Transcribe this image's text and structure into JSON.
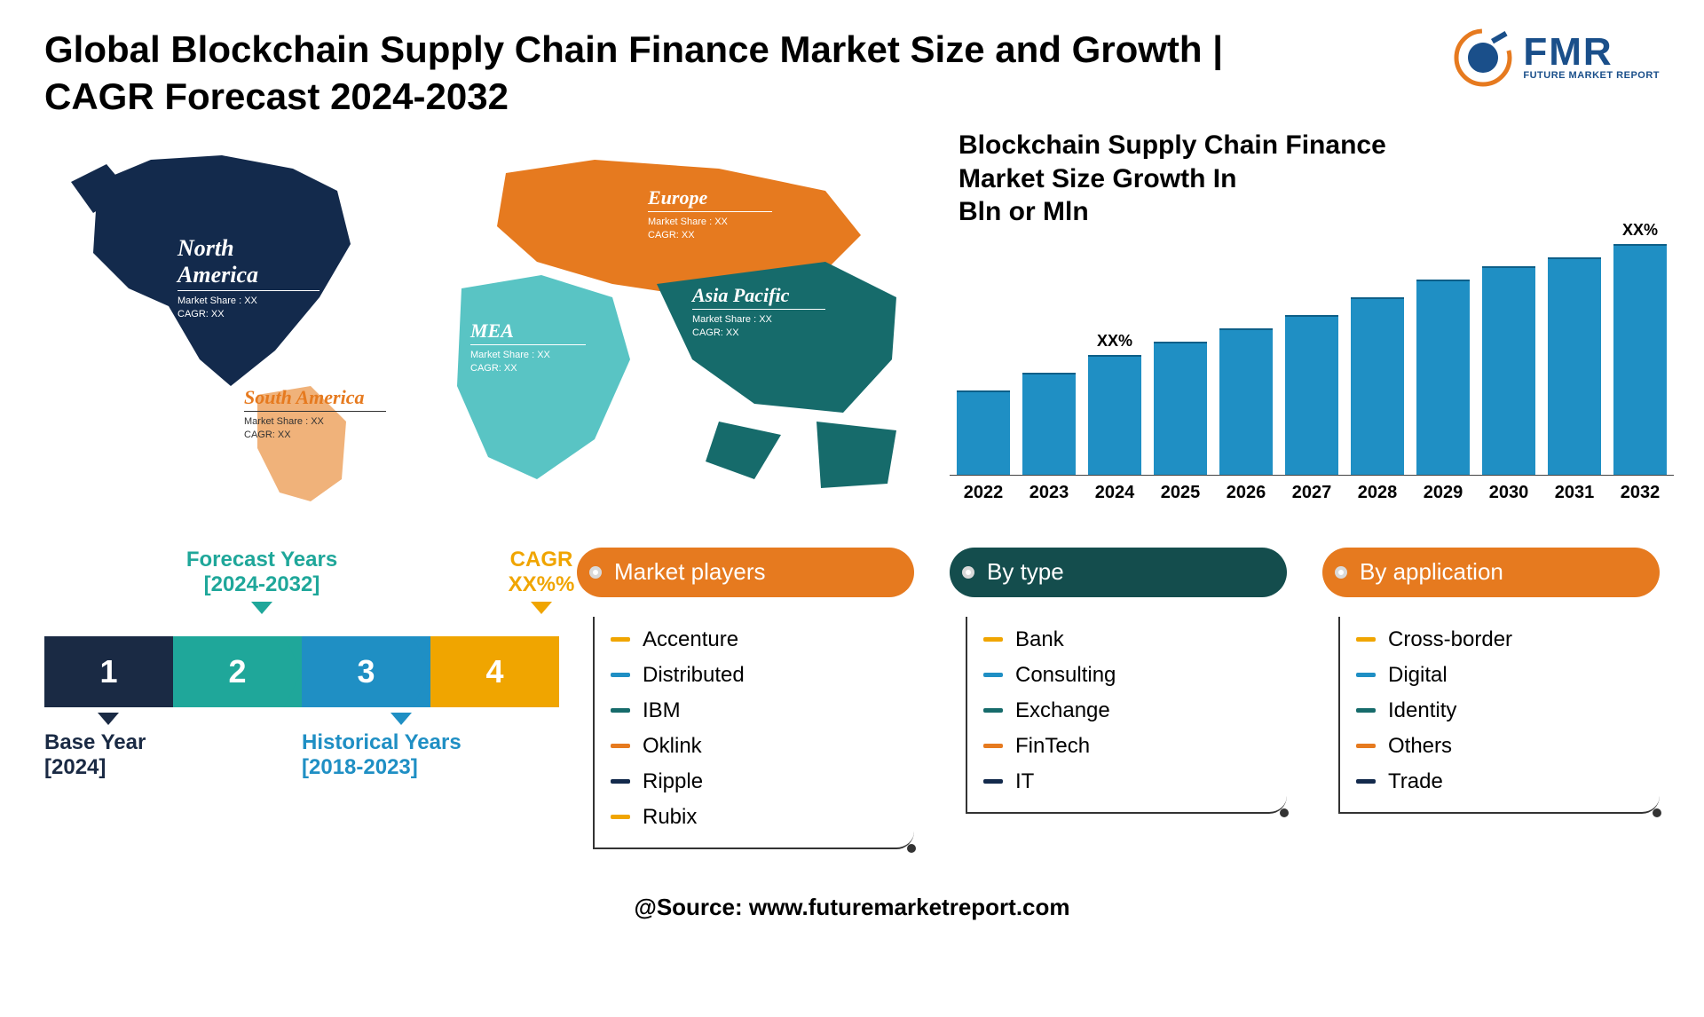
{
  "title": "Global Blockchain Supply Chain Finance  Market Size and Growth | CAGR Forecast 2024-2032",
  "logo": {
    "fmr": "FMR",
    "sub": "FUTURE MARKET REPORT",
    "color_orange": "#e67a1f",
    "color_blue": "#1a4f8a"
  },
  "source": "@Source: www.futuremarketreport.com",
  "map": {
    "regions": [
      {
        "key": "na",
        "name": "North America",
        "share": "Market Share : XX",
        "cagr": "CAGR: XX",
        "color": "#132a4c",
        "text": "light"
      },
      {
        "key": "sa",
        "name": "South America",
        "share": "Market Share : XX",
        "cagr": "CAGR: XX",
        "color": "#f0b27a",
        "text": "dark"
      },
      {
        "key": "eu",
        "name": "Europe",
        "share": "Market Share : XX",
        "cagr": "CAGR: XX",
        "color": "#e67a1f",
        "text": "light"
      },
      {
        "key": "mea",
        "name": "MEA",
        "share": "Market Share : XX",
        "cagr": "CAGR: XX",
        "color": "#59c4c4",
        "text": "light"
      },
      {
        "key": "ap",
        "name": "Asia Pacific",
        "share": "Market Share : XX",
        "cagr": "CAGR: XX",
        "color": "#166b6b",
        "text": "light"
      }
    ]
  },
  "chart": {
    "type": "bar",
    "title_l1": "Blockchain Supply Chain Finance",
    "title_l2": "Market Size Growth In",
    "title_l3": "Bln or Mln",
    "bar_color": "#1f8fc4",
    "bar_border": "#0d5f88",
    "axis_color": "#444444",
    "label_fontsize": 20,
    "title_fontsize": 30,
    "years": [
      "2022",
      "2023",
      "2024",
      "2025",
      "2026",
      "2027",
      "2028",
      "2029",
      "2030",
      "2031",
      "2032"
    ],
    "heights": [
      95,
      115,
      135,
      150,
      165,
      180,
      200,
      220,
      235,
      245,
      260
    ],
    "top_labels": {
      "2": "XX%",
      "10": "XX%"
    }
  },
  "timeline": {
    "segments": [
      {
        "num": "1",
        "color": "#1a2a44"
      },
      {
        "num": "2",
        "color": "#1fa79a"
      },
      {
        "num": "3",
        "color": "#1f8fc4"
      },
      {
        "num": "4",
        "color": "#f0a500"
      }
    ],
    "forecast": {
      "label_l1": "Forecast Years",
      "label_l2": "[2024-2032]",
      "color": "#1fa79a"
    },
    "cagr": {
      "label_l1": "CAGR",
      "label_l2": "XX%%",
      "color": "#f0a500"
    },
    "base": {
      "label_l1": "Base Year",
      "label_l2": "[2024]",
      "color": "#1a2a44"
    },
    "hist": {
      "label_l1": "Historical Years",
      "label_l2": "[2018-2023]",
      "color": "#1f8fc4"
    }
  },
  "categories": [
    {
      "title": "Market players",
      "pill_color": "#e67a1f",
      "items": [
        "Accenture",
        "Distributed",
        "IBM",
        "Oklink",
        "Ripple",
        "Rubix"
      ],
      "dash_colors": [
        "#f0a500",
        "#1f8fc4",
        "#166b6b",
        "#e67a1f",
        "#132a4c",
        "#f0a500"
      ]
    },
    {
      "title": "By type",
      "pill_color": "#144d4d",
      "items": [
        "Bank",
        "Consulting",
        "Exchange",
        "FinTech",
        "IT"
      ],
      "dash_colors": [
        "#f0a500",
        "#1f8fc4",
        "#166b6b",
        "#e67a1f",
        "#132a4c"
      ]
    },
    {
      "title": "By application",
      "pill_color": "#e67a1f",
      "items": [
        "Cross-border",
        "Digital",
        "Identity",
        "Others",
        "Trade"
      ],
      "dash_colors": [
        "#f0a500",
        "#1f8fc4",
        "#166b6b",
        "#e67a1f",
        "#132a4c"
      ]
    }
  ]
}
